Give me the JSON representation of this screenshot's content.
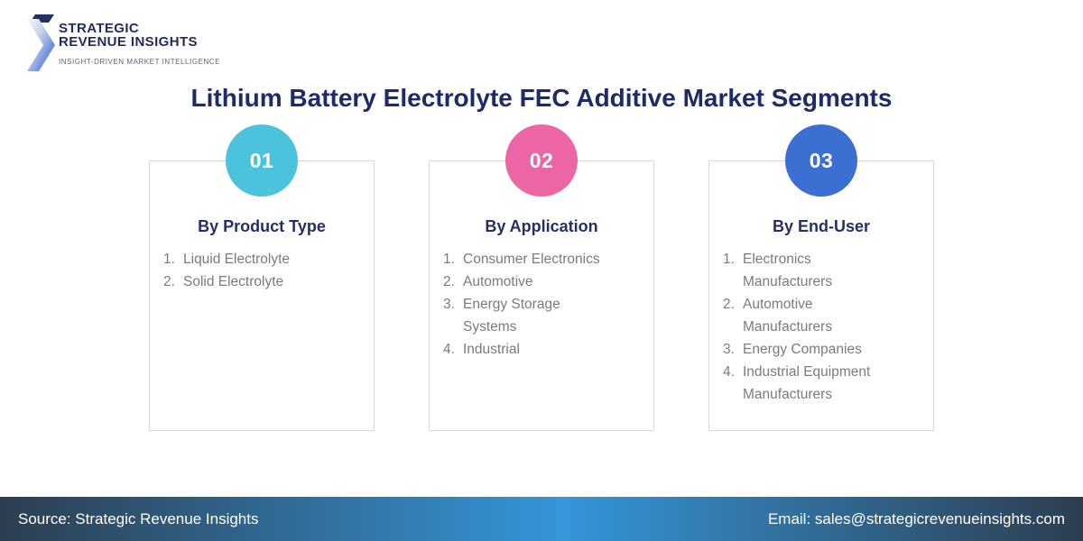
{
  "logo": {
    "line1": "STRATEGIC",
    "line2": "REVENUE INSIGHTS",
    "tagline": "INSIGHT-DRIVEN MARKET INTELLIGENCE"
  },
  "title": "Lithium Battery Electrolyte FEC Additive Market Segments",
  "colors": {
    "title_navy": "#1e2a6b",
    "heading_navy": "#272e67",
    "list_gray": "#7b7b7b",
    "footer_dark": "#2d3e50",
    "footer_blue": "#3596d9"
  },
  "cards": [
    {
      "number": "01",
      "accent": "#4cc3dd",
      "heading": "By Product Type",
      "items": [
        {
          "num": "1.",
          "text": "Liquid Electrolyte"
        },
        {
          "num": "2.",
          "text": "Solid Electrolyte"
        }
      ]
    },
    {
      "number": "02",
      "accent": "#ec66a5",
      "heading": "By Application",
      "items": [
        {
          "num": "1.",
          "text": "Consumer Electronics"
        },
        {
          "num": "2.",
          "text": "Automotive"
        },
        {
          "num": "3.",
          "text": "Energy Storage\nSystems"
        },
        {
          "num": "4.",
          "text": "Industrial"
        }
      ]
    },
    {
      "number": "03",
      "accent": "#3b6fd2",
      "heading": "By End-User",
      "items": [
        {
          "num": "1.",
          "text": "Electronics\nManufacturers"
        },
        {
          "num": "2.",
          "text": "Automotive\nManufacturers"
        },
        {
          "num": "3.",
          "text": "Energy Companies"
        },
        {
          "num": "4.",
          "text": "Industrial Equipment\nManufacturers"
        }
      ]
    }
  ],
  "footer": {
    "source": "Source: Strategic Revenue Insights",
    "email": "Email: sales@strategicrevenueinsights.com"
  }
}
